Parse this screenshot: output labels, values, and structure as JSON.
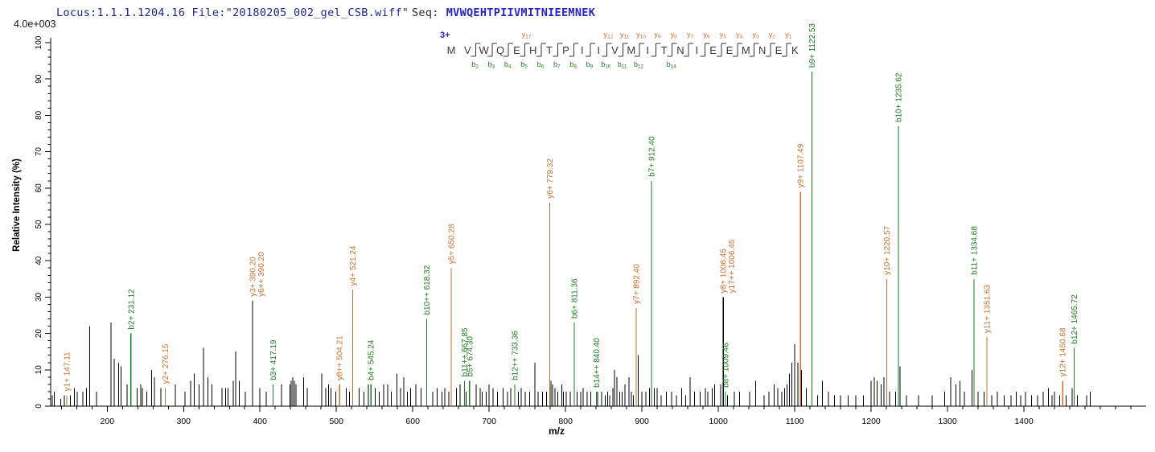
{
  "header": {
    "locus_file": "Locus:1.1.1.1204.16 File:\"20180205_002_gel_CSB.wiff\"",
    "seq_prefix": "Seq:",
    "sequence": "MVWQEHTPIIVMITNIEEMNEK"
  },
  "scale_label": "4.0e+003",
  "colors": {
    "b_ion_green": "#1e7d1e",
    "y_ion_orange": "#c8702e",
    "peak_black": "#000000",
    "header_navy": "#22228c",
    "sequence_blue": "#2525c4",
    "charge_blue": "#2525c4",
    "residue_gray": "#3a3a3a",
    "fragment_mark_gray": "#333333",
    "axis_black": "#000000"
  },
  "peptide_annotation": {
    "charge": "3+",
    "residues": [
      "M",
      "V",
      "W",
      "Q",
      "E",
      "H",
      "T",
      "P",
      "I",
      "I",
      "V",
      "M",
      "I",
      "T",
      "N",
      "I",
      "E",
      "E",
      "M",
      "N",
      "E",
      "K"
    ],
    "b_ion_gaps": [
      2,
      3,
      4,
      5,
      6,
      7,
      8,
      9,
      10,
      11,
      12,
      14
    ],
    "y_ions": [
      {
        "n": 17,
        "gap": 5
      },
      {
        "n": 12,
        "gap": 10
      },
      {
        "n": 11,
        "gap": 11
      },
      {
        "n": 10,
        "gap": 12
      },
      {
        "n": 9,
        "gap": 13
      },
      {
        "n": 8,
        "gap": 14
      },
      {
        "n": 7,
        "gap": 15
      },
      {
        "n": 6,
        "gap": 16
      },
      {
        "n": 5,
        "gap": 17
      },
      {
        "n": 4,
        "gap": 18
      },
      {
        "n": 3,
        "gap": 19
      },
      {
        "n": 2,
        "gap": 20
      },
      {
        "n": 1,
        "gap": 21
      }
    ],
    "marked_gaps": [
      2,
      3,
      4,
      5,
      6,
      7,
      8,
      9,
      10,
      11,
      12,
      13,
      14,
      15,
      16,
      17,
      18,
      19,
      20,
      21
    ]
  },
  "chart_data": {
    "type": "stem",
    "title": "MS/MS fragmentation spectrum",
    "xlabel": "m/z",
    "ylabel": "Relative  Intensity (%)",
    "xlim": [
      126,
      1560
    ],
    "ylim": [
      0,
      100
    ],
    "x_major_ticks": [
      200,
      300,
      400,
      500,
      600,
      700,
      800,
      900,
      1000,
      1100,
      1200,
      1300,
      1400
    ],
    "x_minor_start": 140,
    "x_minor_end": 1540,
    "x_minor_step": 20,
    "y_major_step": 10,
    "y_minor_step": 2,
    "grid": false,
    "labeled_peaks": [
      {
        "mz": 147.11,
        "intensity": 3,
        "labels": [
          "y1+ 147.11"
        ],
        "series": "y"
      },
      {
        "mz": 231.12,
        "intensity": 20,
        "labels": [
          "b2+ 231.12"
        ],
        "series": "b"
      },
      {
        "mz": 276.15,
        "intensity": 5,
        "labels": [
          "y2+ 276.15"
        ],
        "series": "y"
      },
      {
        "mz": 390.2,
        "intensity": 29,
        "labels": [
          "y3+ 390.20",
          "y6++ 390.20"
        ],
        "series": "shared"
      },
      {
        "mz": 417.19,
        "intensity": 6,
        "labels": [
          "b3+ 417.19"
        ],
        "series": "b"
      },
      {
        "mz": 504.21,
        "intensity": 6,
        "labels": [
          "y8++ 504.21"
        ],
        "series": "y"
      },
      {
        "mz": 521.24,
        "intensity": 32,
        "labels": [
          "y4+ 521.24"
        ],
        "series": "y"
      },
      {
        "mz": 545.24,
        "intensity": 6,
        "labels": [
          "b4+ 545.24"
        ],
        "series": "b"
      },
      {
        "mz": 618.32,
        "intensity": 24,
        "labels": [
          "b10++ 618.32"
        ],
        "series": "b"
      },
      {
        "mz": 650.28,
        "intensity": 38,
        "labels": [
          "y5+ 650.28"
        ],
        "series": "y"
      },
      {
        "mz": 667.85,
        "intensity": 7,
        "labels": [
          "b11++ 667.85"
        ],
        "series": "b"
      },
      {
        "mz": 674.3,
        "intensity": 7,
        "labels": [
          "b5+ 674.30"
        ],
        "series": "b"
      },
      {
        "mz": 733.36,
        "intensity": 6,
        "labels": [
          "b12++ 733.36"
        ],
        "series": "b"
      },
      {
        "mz": 779.32,
        "intensity": 56,
        "labels": [
          "y6+ 779.32"
        ],
        "series": "y"
      },
      {
        "mz": 811.36,
        "intensity": 23,
        "labels": [
          "b6+ 811.36"
        ],
        "series": "b"
      },
      {
        "mz": 840.4,
        "intensity": 4,
        "labels": [
          "b14++ 840.40"
        ],
        "series": "b"
      },
      {
        "mz": 892.4,
        "intensity": 27,
        "labels": [
          "y7+ 892.40"
        ],
        "series": "y"
      },
      {
        "mz": 912.4,
        "intensity": 62,
        "labels": [
          "b7+ 912.40"
        ],
        "series": "b"
      },
      {
        "mz": 1006.45,
        "intensity": 30,
        "labels": [
          "y8+ 1006.45",
          "y17++ 1006.45"
        ],
        "series": "shared"
      },
      {
        "mz": 1009.46,
        "intensity": 4,
        "labels": [
          "b8+ 1009.46"
        ],
        "series": "b"
      },
      {
        "mz": 1107.49,
        "intensity": 59,
        "labels": [
          "y9+ 1107.49"
        ],
        "series": "y"
      },
      {
        "mz": 1122.53,
        "intensity": 92,
        "labels": [
          "b9+ 1122.53"
        ],
        "series": "b"
      },
      {
        "mz": 1220.57,
        "intensity": 35,
        "labels": [
          "y10+ 1220.57"
        ],
        "series": "y"
      },
      {
        "mz": 1235.62,
        "intensity": 77,
        "labels": [
          "b10+ 1235.62"
        ],
        "series": "b"
      },
      {
        "mz": 1334.68,
        "intensity": 35,
        "labels": [
          "b11+ 1334.68"
        ],
        "series": "b"
      },
      {
        "mz": 1351.63,
        "intensity": 19,
        "labels": [
          "y11+ 1351.63"
        ],
        "series": "y"
      },
      {
        "mz": 1450.68,
        "intensity": 7,
        "labels": [
          "y12+ 1450.68"
        ],
        "series": "y"
      },
      {
        "mz": 1465.72,
        "intensity": 16,
        "labels": [
          "b12+ 1465.72"
        ],
        "series": "b"
      }
    ],
    "unlabeled_peaks": [
      [
        128,
        3
      ],
      [
        131,
        4
      ],
      [
        139,
        2
      ],
      [
        144,
        3
      ],
      [
        152,
        3
      ],
      [
        157,
        5
      ],
      [
        161,
        4
      ],
      [
        168,
        4
      ],
      [
        173,
        5
      ],
      [
        177,
        22
      ],
      [
        186,
        4
      ],
      [
        205,
        23
      ],
      [
        209,
        13
      ],
      [
        215,
        12
      ],
      [
        218,
        11
      ],
      [
        226,
        6
      ],
      [
        239,
        5
      ],
      [
        244,
        6
      ],
      [
        246,
        5
      ],
      [
        252,
        4
      ],
      [
        258,
        10
      ],
      [
        262,
        8
      ],
      [
        270,
        5
      ],
      [
        289,
        6
      ],
      [
        302,
        4
      ],
      [
        309,
        7
      ],
      [
        314,
        9
      ],
      [
        320,
        6
      ],
      [
        326,
        16
      ],
      [
        332,
        8
      ],
      [
        337,
        6
      ],
      [
        350,
        5
      ],
      [
        355,
        5
      ],
      [
        358,
        5
      ],
      [
        365,
        7
      ],
      [
        368,
        15
      ],
      [
        373,
        7
      ],
      [
        381,
        4
      ],
      [
        400,
        5
      ],
      [
        408,
        4
      ],
      [
        428,
        6
      ],
      [
        439,
        6
      ],
      [
        441,
        7
      ],
      [
        443,
        8
      ],
      [
        445,
        7
      ],
      [
        447,
        6
      ],
      [
        457,
        8
      ],
      [
        462,
        5
      ],
      [
        481,
        9
      ],
      [
        486,
        5
      ],
      [
        490,
        6
      ],
      [
        493,
        5
      ],
      [
        499,
        4
      ],
      [
        513,
        5
      ],
      [
        517,
        4
      ],
      [
        530,
        5
      ],
      [
        536,
        4
      ],
      [
        542,
        6
      ],
      [
        551,
        5
      ],
      [
        556,
        4
      ],
      [
        562,
        6
      ],
      [
        567,
        6
      ],
      [
        572,
        4
      ],
      [
        579,
        9
      ],
      [
        584,
        5
      ],
      [
        588,
        8
      ],
      [
        593,
        4
      ],
      [
        597,
        5
      ],
      [
        604,
        6
      ],
      [
        611,
        5
      ],
      [
        626,
        4
      ],
      [
        632,
        5
      ],
      [
        638,
        4
      ],
      [
        642,
        5
      ],
      [
        647,
        4
      ],
      [
        657,
        5
      ],
      [
        662,
        6
      ],
      [
        670,
        4
      ],
      [
        683,
        6
      ],
      [
        688,
        5
      ],
      [
        691,
        4
      ],
      [
        696,
        4
      ],
      [
        700,
        6
      ],
      [
        705,
        5
      ],
      [
        711,
        4
      ],
      [
        718,
        5
      ],
      [
        724,
        4
      ],
      [
        728,
        5
      ],
      [
        738,
        4
      ],
      [
        742,
        5
      ],
      [
        747,
        4
      ],
      [
        753,
        4
      ],
      [
        760,
        12
      ],
      [
        764,
        4
      ],
      [
        770,
        4
      ],
      [
        775,
        4
      ],
      [
        781,
        7
      ],
      [
        783,
        6
      ],
      [
        786,
        5
      ],
      [
        790,
        4
      ],
      [
        795,
        6
      ],
      [
        797,
        4
      ],
      [
        801,
        4
      ],
      [
        806,
        4
      ],
      [
        815,
        4
      ],
      [
        820,
        4
      ],
      [
        823,
        5
      ],
      [
        828,
        4
      ],
      [
        833,
        4
      ],
      [
        842,
        4
      ],
      [
        847,
        4
      ],
      [
        852,
        3
      ],
      [
        855,
        4
      ],
      [
        858,
        3
      ],
      [
        862,
        5
      ],
      [
        864,
        10
      ],
      [
        867,
        8
      ],
      [
        871,
        4
      ],
      [
        874,
        4
      ],
      [
        878,
        6
      ],
      [
        883,
        8
      ],
      [
        886,
        4
      ],
      [
        889,
        3
      ],
      [
        895,
        14
      ],
      [
        900,
        4
      ],
      [
        905,
        4
      ],
      [
        910,
        5
      ],
      [
        916,
        5
      ],
      [
        920,
        5
      ],
      [
        925,
        3
      ],
      [
        932,
        4
      ],
      [
        939,
        4
      ],
      [
        945,
        3
      ],
      [
        952,
        5
      ],
      [
        957,
        3
      ],
      [
        963,
        8
      ],
      [
        969,
        4
      ],
      [
        976,
        4
      ],
      [
        983,
        5
      ],
      [
        986,
        4
      ],
      [
        992,
        5
      ],
      [
        995,
        6
      ],
      [
        1003,
        6
      ],
      [
        1012,
        3
      ],
      [
        1021,
        4
      ],
      [
        1028,
        4
      ],
      [
        1041,
        4
      ],
      [
        1049,
        7
      ],
      [
        1060,
        3
      ],
      [
        1066,
        4
      ],
      [
        1073,
        6
      ],
      [
        1078,
        5
      ],
      [
        1083,
        4
      ],
      [
        1087,
        5
      ],
      [
        1090,
        6
      ],
      [
        1093,
        9
      ],
      [
        1096,
        12
      ],
      [
        1100,
        17
      ],
      [
        1104,
        12
      ],
      [
        1109,
        10
      ],
      [
        1115,
        5
      ],
      [
        1130,
        3
      ],
      [
        1136,
        7
      ],
      [
        1144,
        4
      ],
      [
        1152,
        3
      ],
      [
        1160,
        3
      ],
      [
        1170,
        3
      ],
      [
        1180,
        3
      ],
      [
        1190,
        3
      ],
      [
        1200,
        7
      ],
      [
        1204,
        8
      ],
      [
        1208,
        7
      ],
      [
        1213,
        6
      ],
      [
        1217,
        8
      ],
      [
        1224,
        4
      ],
      [
        1232,
        4
      ],
      [
        1238,
        11
      ],
      [
        1246,
        3
      ],
      [
        1262,
        3
      ],
      [
        1280,
        3
      ],
      [
        1296,
        4
      ],
      [
        1304,
        8
      ],
      [
        1311,
        6
      ],
      [
        1316,
        7
      ],
      [
        1322,
        4
      ],
      [
        1332,
        10
      ],
      [
        1340,
        4
      ],
      [
        1348,
        4
      ],
      [
        1358,
        3
      ],
      [
        1365,
        4
      ],
      [
        1374,
        3
      ],
      [
        1383,
        3
      ],
      [
        1390,
        4
      ],
      [
        1396,
        3
      ],
      [
        1402,
        4
      ],
      [
        1410,
        3
      ],
      [
        1418,
        3
      ],
      [
        1425,
        4
      ],
      [
        1432,
        5
      ],
      [
        1437,
        3
      ],
      [
        1440,
        4
      ],
      [
        1447,
        3
      ],
      [
        1455,
        3
      ],
      [
        1463,
        5
      ],
      [
        1470,
        3
      ],
      [
        1482,
        3
      ],
      [
        1487,
        4
      ]
    ]
  }
}
